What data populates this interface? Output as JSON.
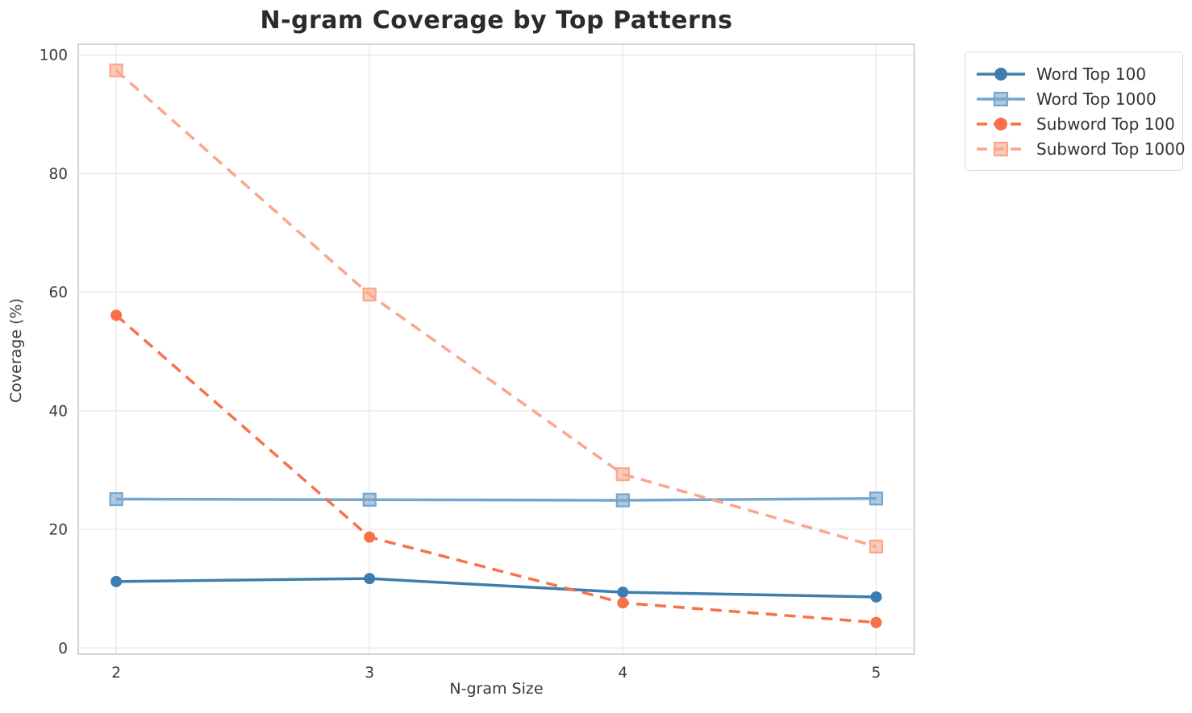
{
  "title": "N-gram Coverage by Top Patterns",
  "chart_data": {
    "type": "line",
    "title": "N-gram Coverage by Top Patterns",
    "xlabel": "N-gram Size",
    "ylabel": "Coverage (%)",
    "x": [
      2,
      3,
      4,
      5
    ],
    "xticks": [
      2,
      3,
      4,
      5
    ],
    "yticks": [
      0,
      20,
      40,
      60,
      80,
      100
    ],
    "xlim": [
      1.85,
      5.15
    ],
    "ylim": [
      -1.05,
      101.8
    ],
    "grid": true,
    "legend_position": "outside-upper-right",
    "series": [
      {
        "name": "Word Top 100",
        "values": [
          11.2,
          11.7,
          9.4,
          8.6
        ],
        "color": "#3d7eae",
        "line_style": "solid",
        "marker": "circle"
      },
      {
        "name": "Word Top 1000",
        "values": [
          25.1,
          25.0,
          24.9,
          25.2
        ],
        "color": "#78a5cb",
        "line_style": "solid",
        "marker": "square"
      },
      {
        "name": "Subword Top 100",
        "values": [
          56.1,
          18.7,
          7.6,
          4.3
        ],
        "color": "#f97049",
        "line_style": "dashed",
        "marker": "circle"
      },
      {
        "name": "Subword Top 1000",
        "values": [
          97.4,
          59.6,
          29.3,
          17.1
        ],
        "color": "#fba68b",
        "line_style": "dashed",
        "marker": "square"
      }
    ],
    "style": {
      "grid_color": "#e7e7e7",
      "spine_color": "#c0c0c0",
      "tick_label_color": "#3a3a3a",
      "title_color": "#2b2b2b",
      "legend_text_color": "#333333"
    }
  }
}
